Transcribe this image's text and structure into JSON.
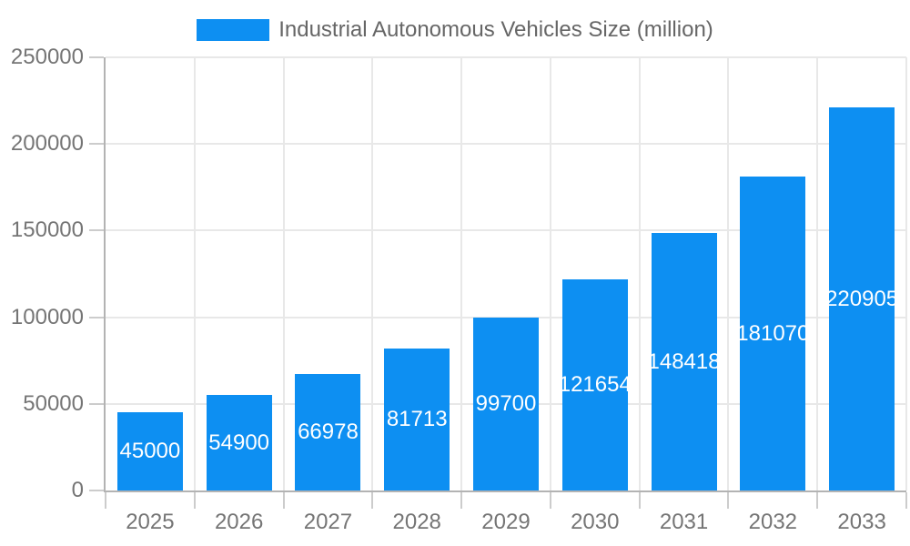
{
  "chart_data": {
    "type": "bar",
    "title": "Industrial Autonomous Vehicles Size (million)",
    "legend": [
      "Industrial Autonomous Vehicles Size (million)"
    ],
    "legend_position": "top-center",
    "categories": [
      "2025",
      "2026",
      "2027",
      "2028",
      "2029",
      "2030",
      "2031",
      "2032",
      "2033"
    ],
    "series": [
      {
        "name": "Industrial Autonomous Vehicles Size (million)",
        "values": [
          45000,
          54900,
          66978,
          81713,
          99700,
          121654,
          148418,
          181070,
          220905
        ]
      }
    ],
    "bar_value_labels": [
      "45000",
      "54900",
      "66978",
      "81713",
      "99700",
      "121654",
      "148418",
      "181070",
      "220905"
    ],
    "xlabel": "",
    "ylabel": "",
    "ylim": [
      0,
      250000
    ],
    "ytick_step": 50000,
    "yticks": [
      "0",
      "50000",
      "100000",
      "150000",
      "200000",
      "250000"
    ],
    "grid": true,
    "bar_labels_inside": true
  },
  "style": {
    "bar_color": "#0d8ff2",
    "bar_label_color": "#ffffff",
    "grid_color": "#e8e8e8",
    "axis_color": "#b3b3b3",
    "tick_color": "#cccccc",
    "tick_label_color": "#757575",
    "legend_text_color": "#666666",
    "background": "#ffffff"
  }
}
